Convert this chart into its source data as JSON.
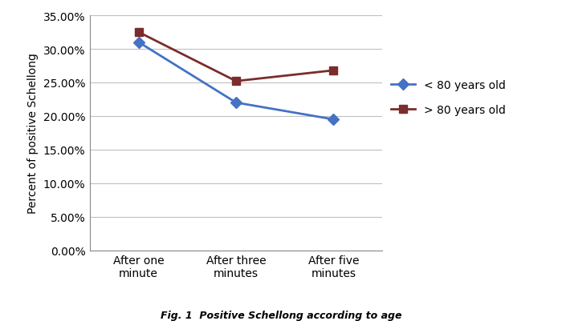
{
  "x_labels": [
    "After one\nminute",
    "After three\nminutes",
    "After five\nminutes"
  ],
  "series": [
    {
      "label": "< 80 years old",
      "values": [
        0.31,
        0.22,
        0.195
      ],
      "color": "#4472C4",
      "marker": "D",
      "markersize": 7,
      "linewidth": 2.0
    },
    {
      "label": "> 80 years old",
      "values": [
        0.325,
        0.252,
        0.268
      ],
      "color": "#7B2C2C",
      "marker": "s",
      "markersize": 7,
      "linewidth": 2.0
    }
  ],
  "ylabel": "Percent of positive Schellong",
  "ylim": [
    0.0,
    0.35
  ],
  "yticks": [
    0.0,
    0.05,
    0.1,
    0.15,
    0.2,
    0.25,
    0.3,
    0.35
  ],
  "caption": "Fig. 1  Positive Schellong according to age",
  "background_color": "#ffffff",
  "grid_color": "#c0c0c0"
}
